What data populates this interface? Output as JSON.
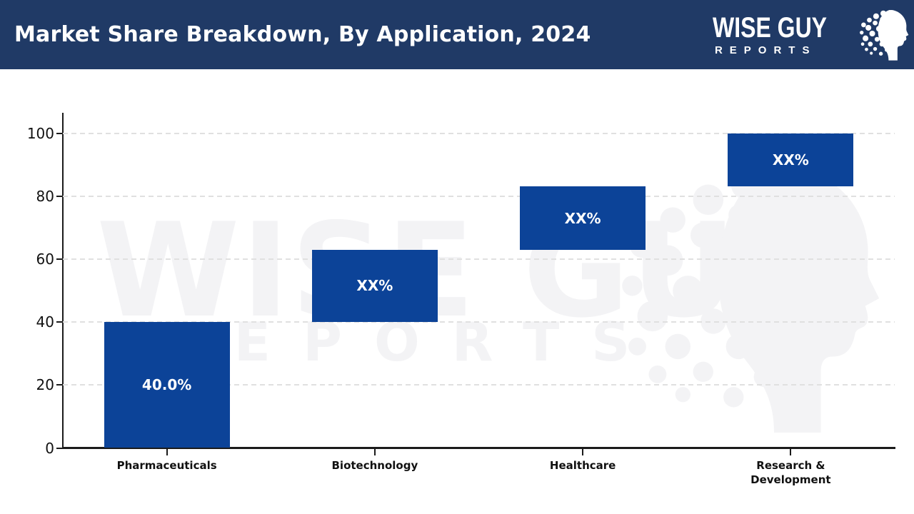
{
  "header": {
    "title": "Market Share Breakdown, By Application, 2024",
    "logo": {
      "line1": "WISE GUY",
      "line2": "REPORTS"
    }
  },
  "watermark": {
    "line1": "WISE GUY",
    "line2": "REPORTS"
  },
  "chart_data": {
    "type": "bar",
    "subtype": "waterfall-range",
    "title": "Market Share Breakdown, By Application, 2024",
    "categories": [
      "Pharmaceuticals",
      "Biotechnology",
      "Healthcare",
      "Research &\nDevelopment"
    ],
    "series": [
      {
        "name": "Market Share (%)",
        "segments": [
          {
            "category": "Pharmaceuticals",
            "start": 0,
            "end": 40,
            "label": "40.0%"
          },
          {
            "category": "Biotechnology",
            "start": 40,
            "end": 63,
            "label": "XX%"
          },
          {
            "category": "Healthcare",
            "start": 63,
            "end": 83,
            "label": "XX%"
          },
          {
            "category": "Research & Development",
            "start": 83,
            "end": 100,
            "label": "XX%"
          }
        ]
      }
    ],
    "xlabel": "",
    "ylabel": "",
    "ylim": [
      0,
      100
    ],
    "yticks": [
      0,
      20,
      40,
      60,
      80,
      100
    ],
    "grid": "horizontal-dashed",
    "legend": "none"
  },
  "colors": {
    "header_bg": "#203a66",
    "bar": "#0c4398",
    "bar_label": "#ffffff",
    "axis": "#1b1b1b",
    "tick_text": "#111111",
    "grid": "#e0e0e0",
    "watermark": "#f3f3f5",
    "background": "#ffffff"
  }
}
